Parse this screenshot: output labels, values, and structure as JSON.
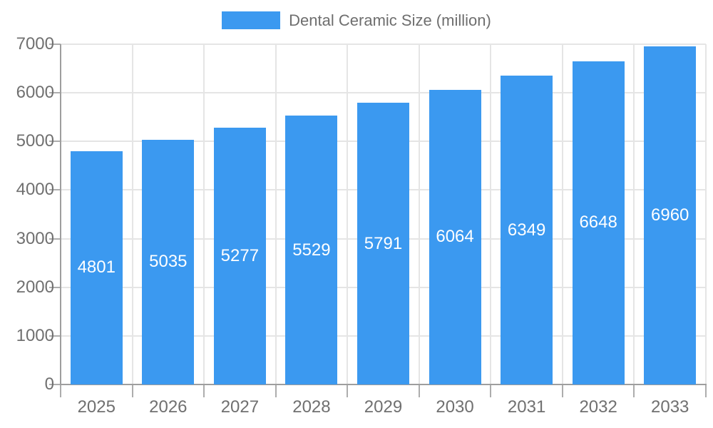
{
  "chart_data": {
    "type": "bar",
    "title": "Dental Ceramic Size (million)",
    "categories": [
      "2025",
      "2026",
      "2027",
      "2028",
      "2029",
      "2030",
      "2031",
      "2032",
      "2033"
    ],
    "series": [
      {
        "name": "Dental Ceramic Size (million)",
        "color": "#3B99F0",
        "values": [
          4801,
          5035,
          5277,
          5529,
          5791,
          6064,
          6349,
          6648,
          6960
        ]
      }
    ],
    "value_labels_position": "inside-center",
    "xlabel": "",
    "ylabel": "",
    "ylim": [
      0,
      7000
    ],
    "y_tick_interval": 1000,
    "y_tick_labels": [
      "0",
      "1000",
      "2000",
      "3000",
      "4000",
      "5000",
      "6000",
      "7000"
    ],
    "grid": "both",
    "legend_position": "top-center",
    "colors": {
      "bar": "#3B99F0",
      "bar_value_text": "#FFFFFF",
      "axis_text": "#707070",
      "legend_text": "#6E6E6E",
      "grid_line": "#E5E5E5",
      "axis_line": "#9E9E9E",
      "tick_mark": "#ADADAD",
      "background": "#FFFFFF"
    }
  }
}
